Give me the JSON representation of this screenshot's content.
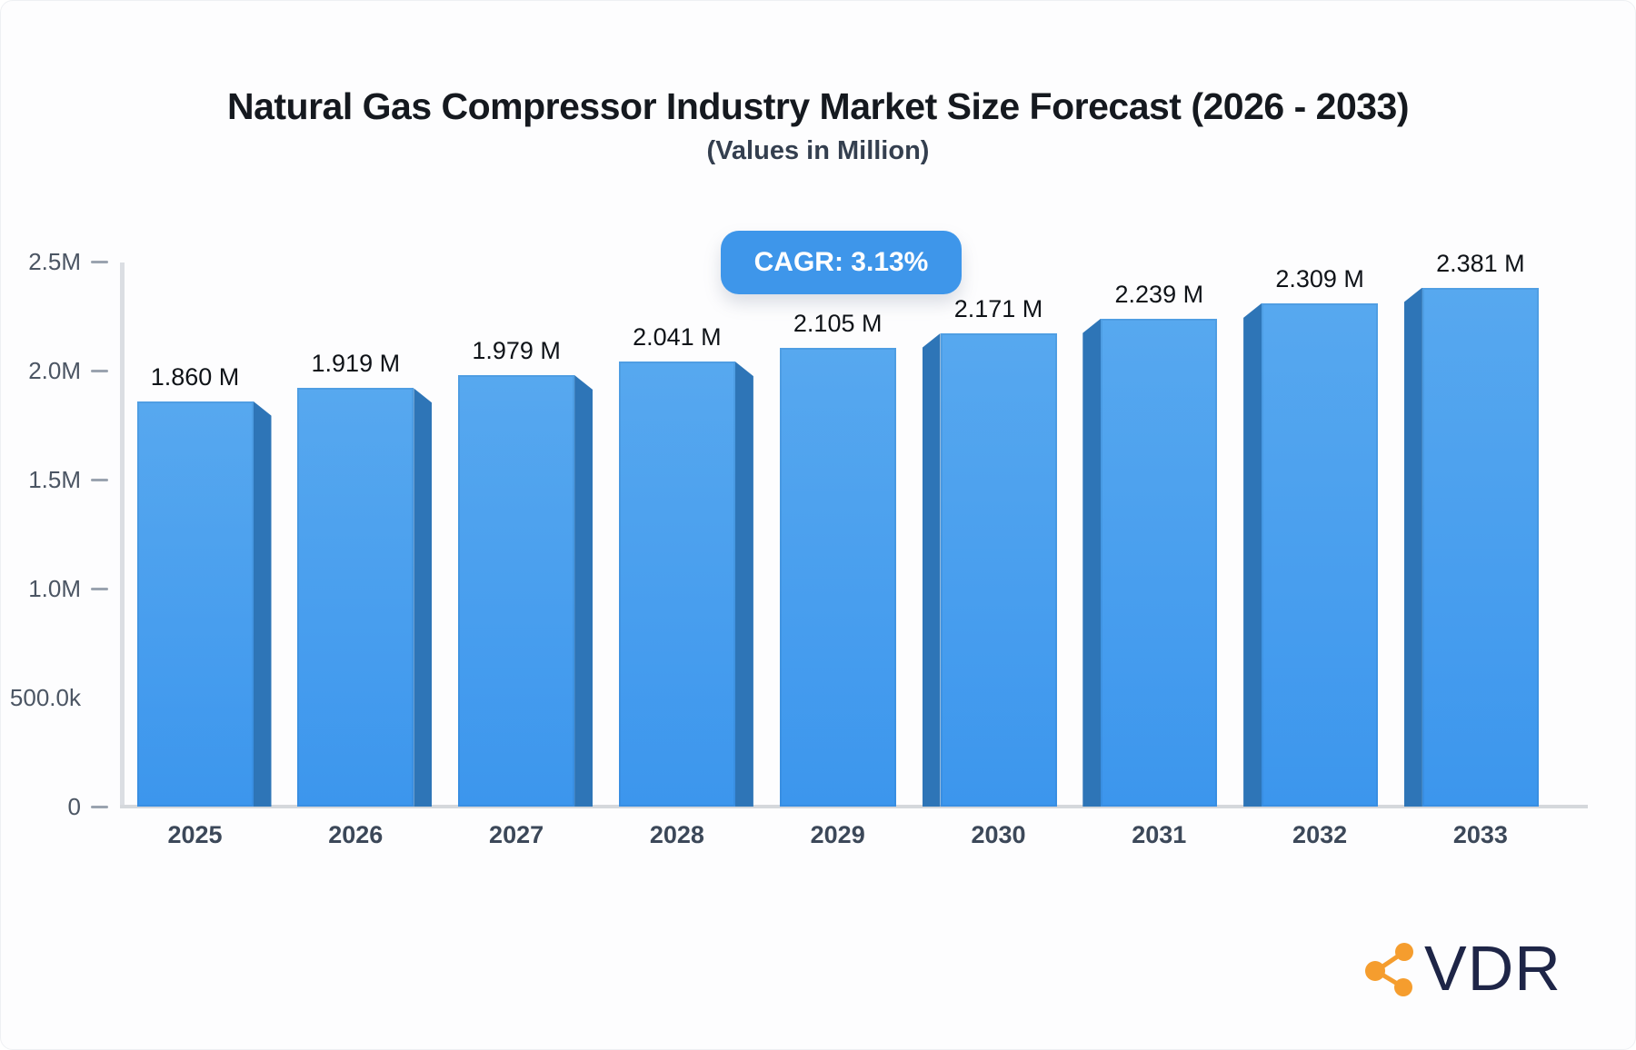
{
  "title": "Natural Gas Compressor Industry Market Size Forecast (2026 - 2033)",
  "subtitle": "(Values in Million)",
  "cagr_badge": "CAGR: 3.13%",
  "logo": {
    "text": "VDR"
  },
  "colors": {
    "bar_gradient_top": "#57a8ef",
    "bar_gradient_bottom": "#3c96ed",
    "bar_side_3d": "#2e75b7",
    "badge_bg": "#3e96ea",
    "logo_orange": "#f59d2e",
    "logo_navy": "#1e2547",
    "axis_gray": "#d8dbe0",
    "label_dark": "#0f1318"
  },
  "chart_data": {
    "type": "bar",
    "title": "Natural Gas Compressor Industry Market Size Forecast (2026 - 2033)",
    "subtitle": "(Values in Million)",
    "annotation": "CAGR: 3.13%",
    "unit": "Million",
    "categories": [
      "2025",
      "2026",
      "2027",
      "2028",
      "2029",
      "2030",
      "2031",
      "2032",
      "2033"
    ],
    "values": [
      1.86,
      1.919,
      1.979,
      2.041,
      2.105,
      2.171,
      2.239,
      2.309,
      2.381
    ],
    "value_labels": [
      "1.860 M",
      "1.919 M",
      "1.979 M",
      "2.041 M",
      "2.105 M",
      "2.171 M",
      "2.239 M",
      "2.309 M",
      "2.381 M"
    ],
    "xlabel": "",
    "ylabel": "",
    "ylim": [
      0,
      2.5
    ],
    "grid": false,
    "legend": false,
    "y_ticks": [
      {
        "label": "2.5M",
        "value": 2.5,
        "tick_mark": true
      },
      {
        "label": "2.0M",
        "value": 2.0,
        "tick_mark": true
      },
      {
        "label": "1.5M",
        "value": 1.5,
        "tick_mark": true
      },
      {
        "label": "1.0M",
        "value": 1.0,
        "tick_mark": true
      },
      {
        "label": "500.0k",
        "value": 0.5,
        "tick_mark": false
      },
      {
        "label": "0",
        "value": 0.0,
        "tick_mark": true
      }
    ]
  }
}
